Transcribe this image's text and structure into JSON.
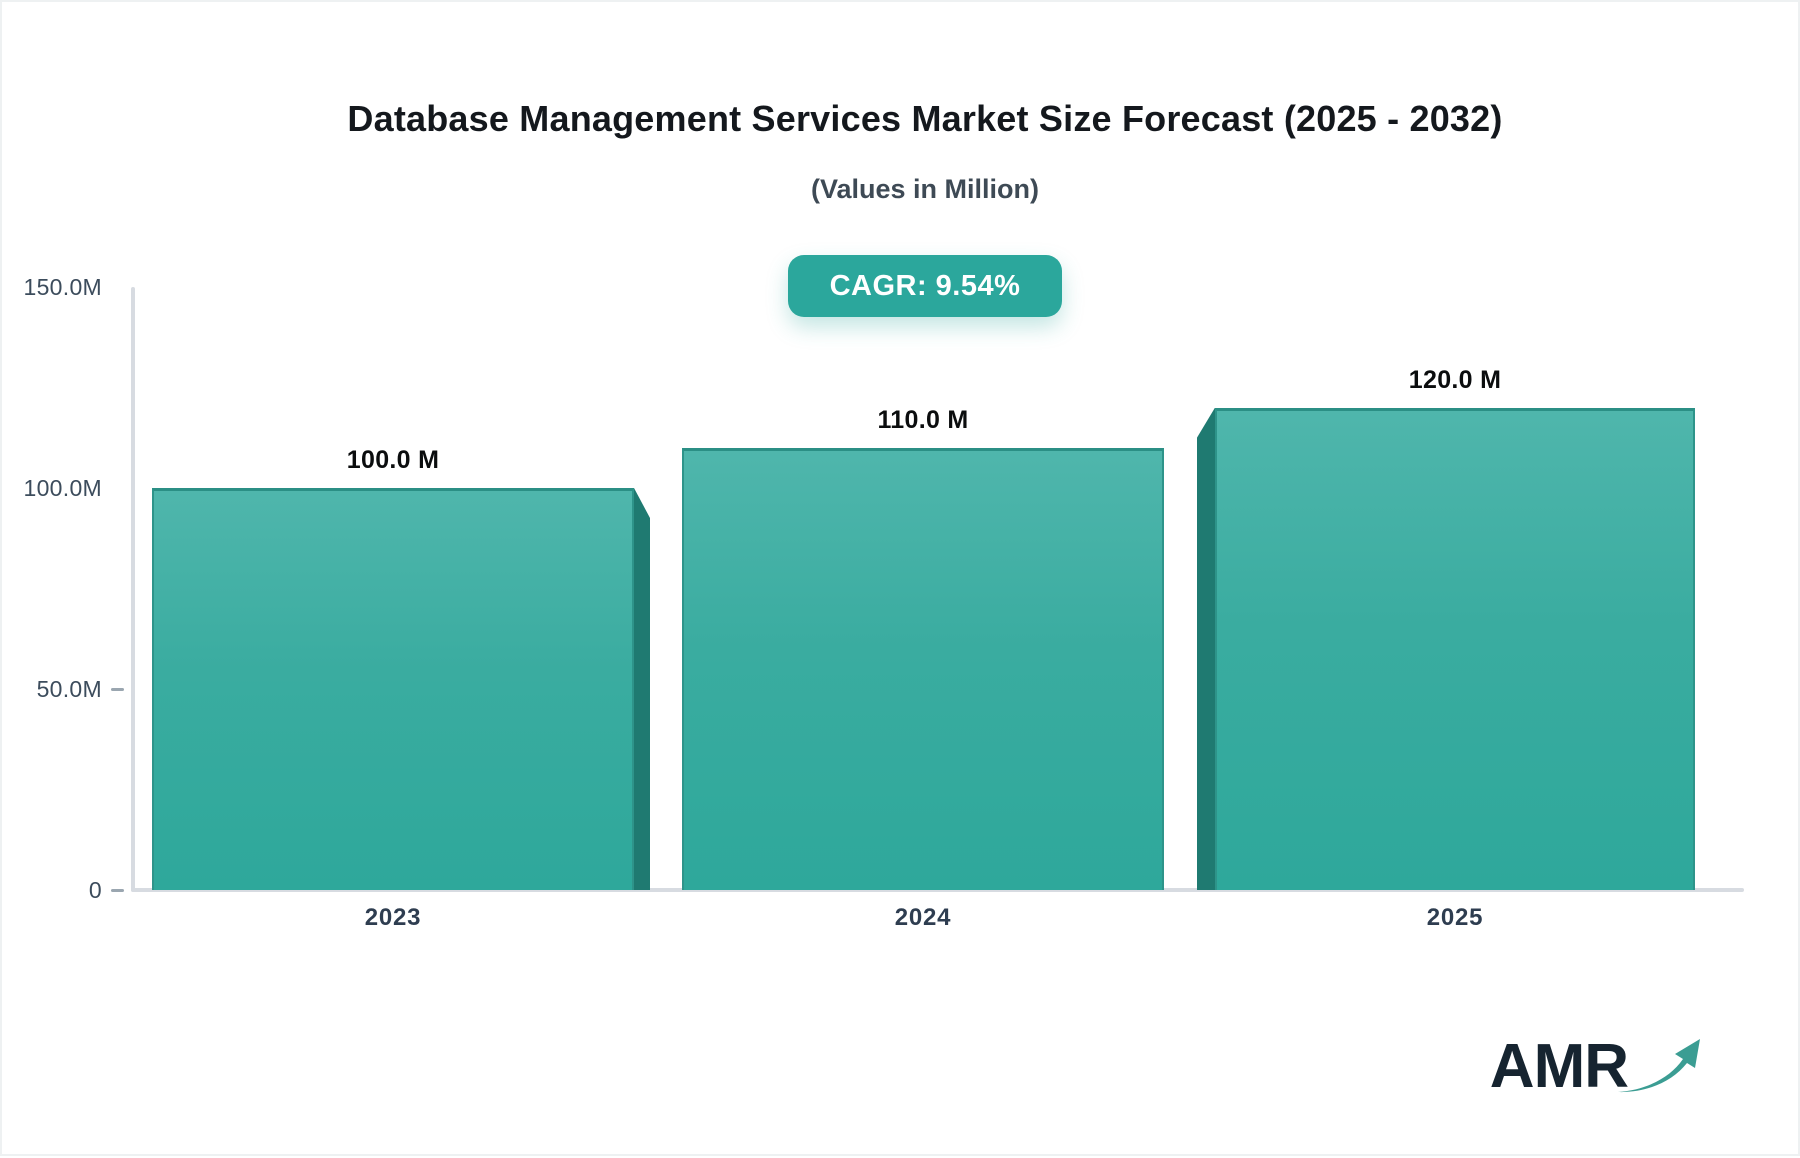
{
  "header": {
    "title": "Database Management Services Market Size Forecast (2025 - 2032)",
    "subtitle": "(Values in Million)",
    "cagr_badge": "CAGR: 9.54%"
  },
  "chart_data": {
    "type": "bar",
    "title": "Database Management Services Market Size Forecast (2025 - 2032)",
    "subtitle": "(Values in Million)",
    "cagr_label": "CAGR: 9.54%",
    "cagr_percent": 9.54,
    "unit": "Million",
    "categories": [
      "2023",
      "2024",
      "2025"
    ],
    "values": [
      100.0,
      110.0,
      120.0
    ],
    "bar_labels": [
      "100.0 M",
      "110.0 M",
      "120.0 M"
    ],
    "ylim": [
      0,
      150
    ],
    "y_ticks": [
      {
        "label": "150.0M",
        "value": 150,
        "dash": false
      },
      {
        "label": "100.0M",
        "value": 100,
        "dash": false
      },
      {
        "label": "50.0M",
        "value": 50,
        "dash": true
      },
      {
        "label": "0",
        "value": 0,
        "dash": true
      }
    ],
    "xlabel": "",
    "ylabel": "",
    "grid": false,
    "legend": null,
    "colors": {
      "bar_top": "#4FB6AC",
      "bar_bottom": "#2EA89B",
      "bar_border": "#2B8F85",
      "bar_side_3d": "#1F7A71",
      "axis": "#D7DBE1",
      "badge_bg": "#2BA79C",
      "badge_text": "#FFFFFF",
      "logo_navy": "#162430",
      "logo_arrow_teal": "#3B9D93"
    }
  },
  "footer": {
    "logo_text": "AMR"
  }
}
